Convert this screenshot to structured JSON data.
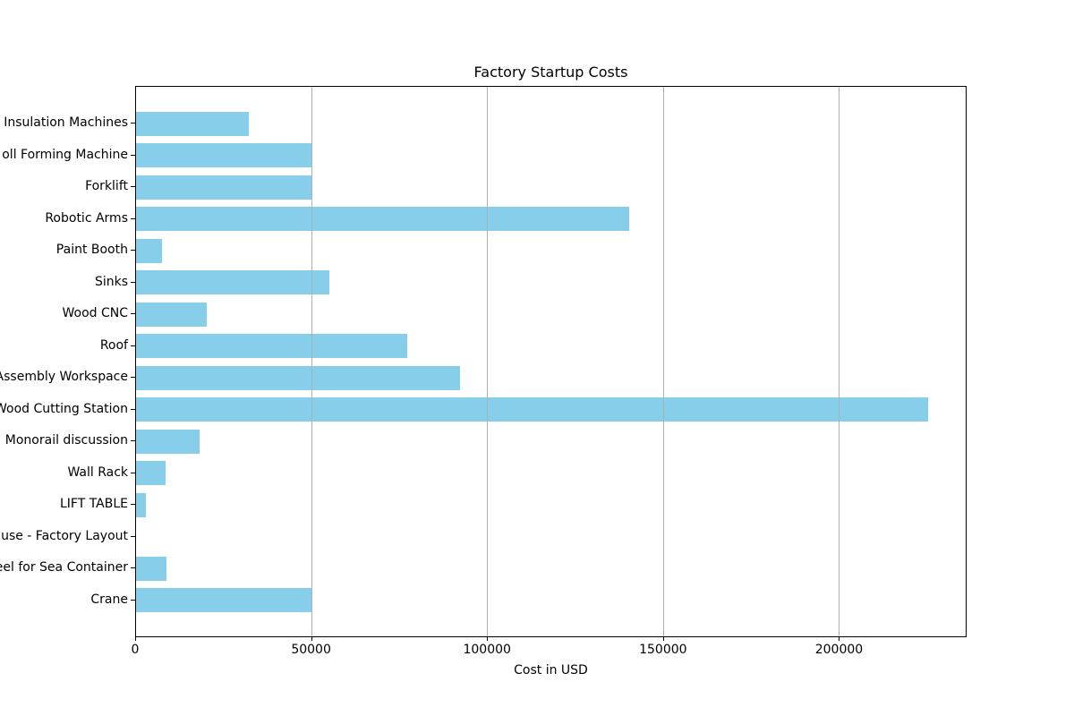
{
  "chart_data": {
    "type": "bar",
    "orientation": "horizontal",
    "title": "Factory Startup Costs",
    "xlabel": "Cost in USD",
    "ylabel": "",
    "categories": [
      "Insulation Machines",
      "oll Forming Machine",
      "Forklift",
      "Robotic Arms",
      "Paint Booth",
      "Sinks",
      "Wood CNC",
      "Roof",
      "Assembly Workspace",
      "Wood Cutting Station",
      "Monorail discussion",
      "Wall Rack",
      "LIFT TABLE",
      "use - Factory Layout",
      "eel for Sea Container",
      "Crane"
    ],
    "values": [
      32000,
      50000,
      50000,
      140000,
      7500,
      55000,
      20000,
      77000,
      92000,
      225000,
      18000,
      8500,
      2700,
      0,
      8700,
      50000
    ],
    "xlim": [
      0,
      236250
    ],
    "x_ticks": [
      0,
      50000,
      100000,
      150000,
      200000
    ],
    "x_tick_labels": [
      "0",
      "50000",
      "100000",
      "150000",
      "200000"
    ],
    "bar_color": "#87CEEB",
    "grid_color": "#b0b0b0",
    "grid": "vertical-on",
    "legend_position": "none"
  }
}
